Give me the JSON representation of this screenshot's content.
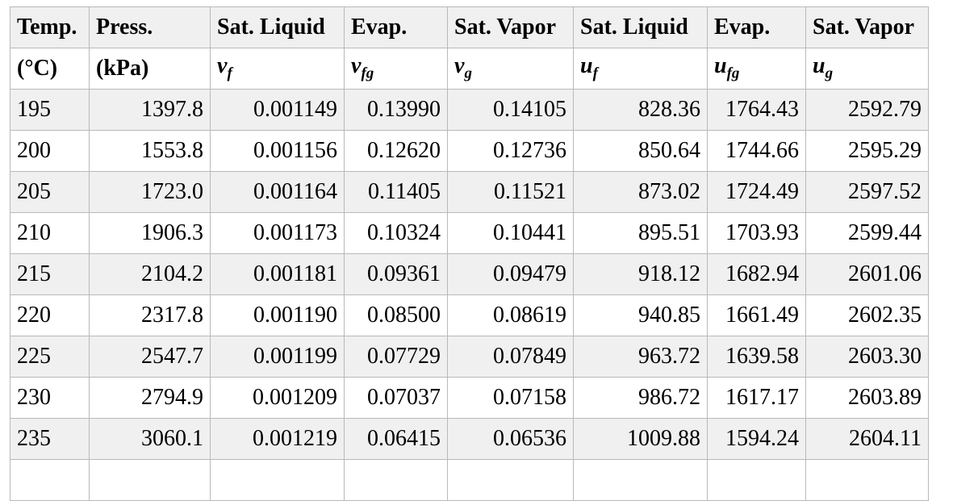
{
  "table": {
    "columns": [
      {
        "top": "Temp.",
        "unit": "(°C)"
      },
      {
        "top": "Press.",
        "unit": "(kPa)"
      },
      {
        "top": "Sat. Liquid",
        "sym": "v",
        "sub": "f"
      },
      {
        "top": "Evap.",
        "sym": "v",
        "sub": "fg"
      },
      {
        "top": "Sat. Vapor",
        "sym": "v",
        "sub": "g"
      },
      {
        "top": "Sat. Liquid",
        "sym": "u",
        "sub": "f"
      },
      {
        "top": "Evap.",
        "sym": "u",
        "sub": "fg"
      },
      {
        "top": "Sat. Vapor",
        "sym": "u",
        "sub": "g"
      }
    ],
    "rows": [
      [
        "195",
        "1397.8",
        "0.001149",
        "0.13990",
        "0.14105",
        "828.36",
        "1764.43",
        "2592.79"
      ],
      [
        "200",
        "1553.8",
        "0.001156",
        "0.12620",
        "0.12736",
        "850.64",
        "1744.66",
        "2595.29"
      ],
      [
        "205",
        "1723.0",
        "0.001164",
        "0.11405",
        "0.11521",
        "873.02",
        "1724.49",
        "2597.52"
      ],
      [
        "210",
        "1906.3",
        "0.001173",
        "0.10324",
        "0.10441",
        "895.51",
        "1703.93",
        "2599.44"
      ],
      [
        "215",
        "2104.2",
        "0.001181",
        "0.09361",
        "0.09479",
        "918.12",
        "1682.94",
        "2601.06"
      ],
      [
        "220",
        "2317.8",
        "0.001190",
        "0.08500",
        "0.08619",
        "940.85",
        "1661.49",
        "2602.35"
      ],
      [
        "225",
        "2547.7",
        "0.001199",
        "0.07729",
        "0.07849",
        "963.72",
        "1639.58",
        "2603.30"
      ],
      [
        "230",
        "2794.9",
        "0.001209",
        "0.07037",
        "0.07158",
        "986.72",
        "1617.17",
        "2603.89"
      ],
      [
        "235",
        "3060.1",
        "0.001219",
        "0.06415",
        "0.06536",
        "1009.88",
        "1594.24",
        "2604.11"
      ]
    ],
    "partial_next_row": true
  }
}
